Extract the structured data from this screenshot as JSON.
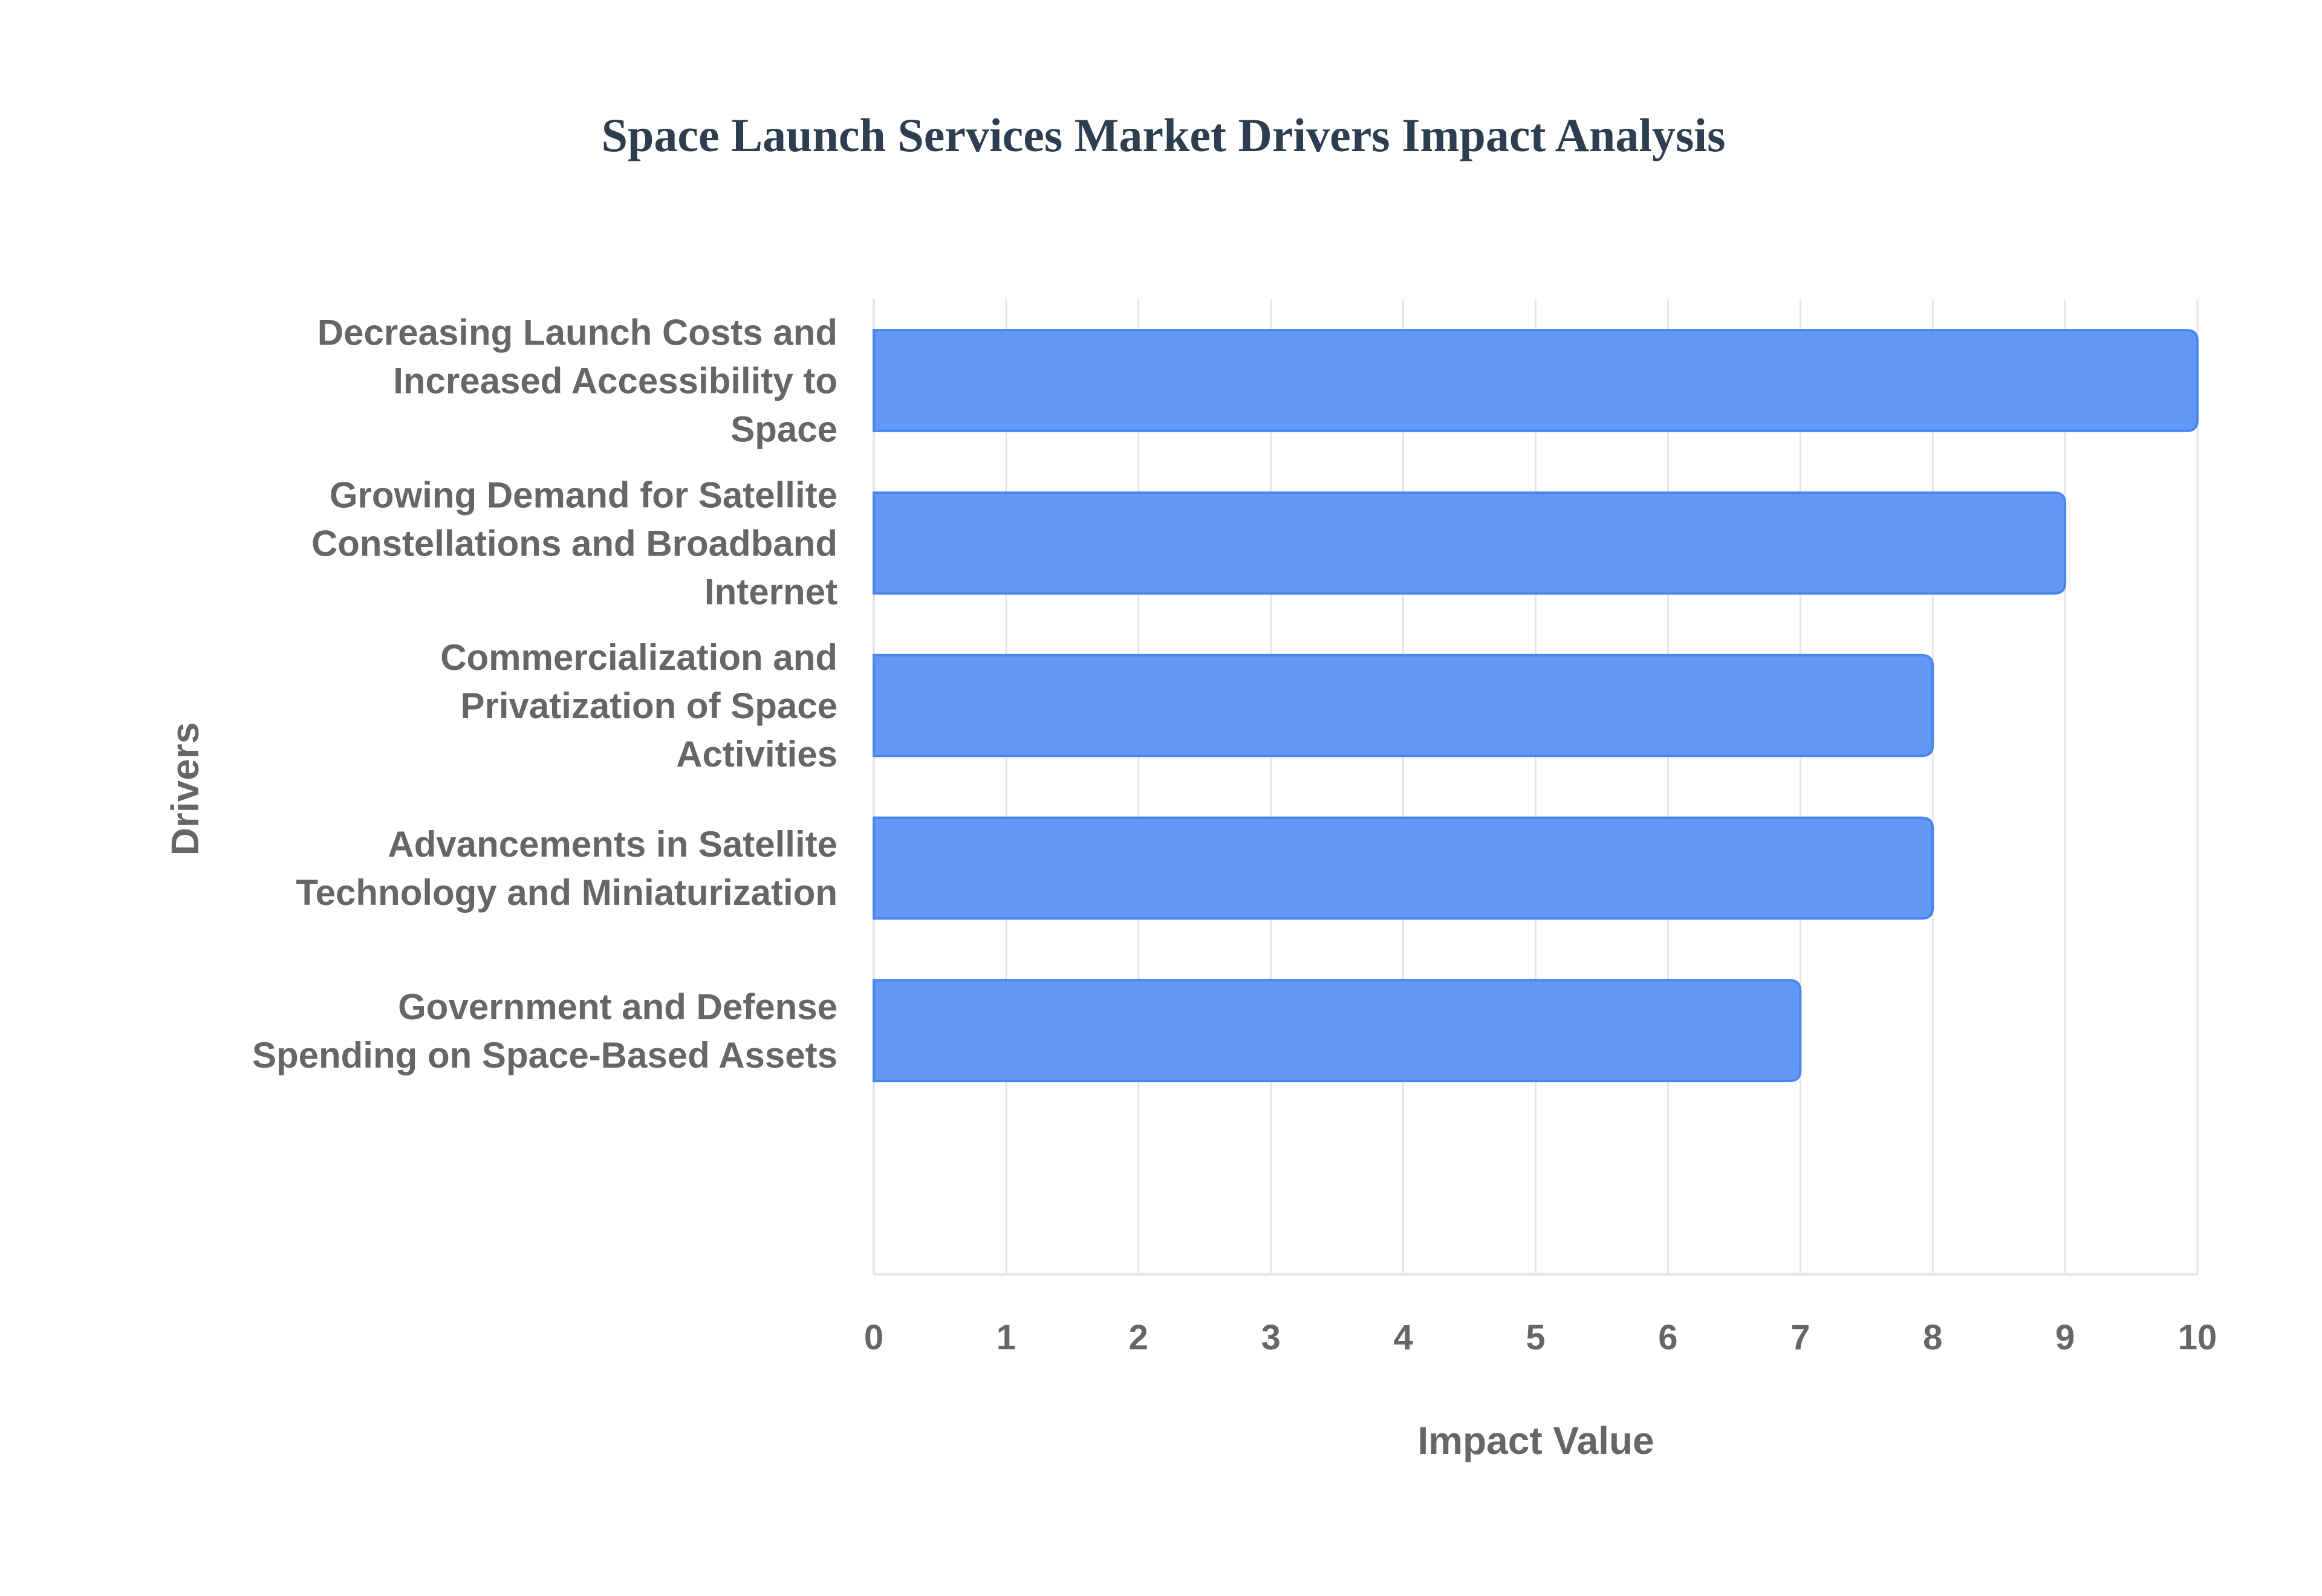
{
  "chart_data": {
    "type": "bar",
    "orientation": "horizontal",
    "title": "Space Launch Services Market Drivers Impact Analysis",
    "xlabel": "Impact Value",
    "ylabel": "Drivers",
    "categories": [
      [
        "Decreasing Launch Costs and",
        "Increased Accessibility to",
        "Space"
      ],
      [
        "Growing Demand for Satellite",
        "Constellations and Broadband",
        "Internet"
      ],
      [
        "Commercialization and",
        "Privatization of Space",
        "Activities"
      ],
      [
        "Advancements in Satellite",
        "Technology and Miniaturization"
      ],
      [
        "Government and Defense",
        "Spending on Space-Based Assets"
      ]
    ],
    "values": [
      10,
      9,
      8,
      8,
      7
    ],
    "xlim": [
      0,
      10
    ],
    "xticks": [
      "0",
      "1",
      "2",
      "3",
      "4",
      "5",
      "6",
      "7",
      "8",
      "9",
      "10"
    ],
    "grid": true,
    "legend": "none",
    "colors": {
      "bar_fill": "#6198F5",
      "bar_stroke": "#4A86EE",
      "title": "#2C3E50",
      "axis_text": "#666666",
      "grid": "#E6E6E6"
    }
  }
}
